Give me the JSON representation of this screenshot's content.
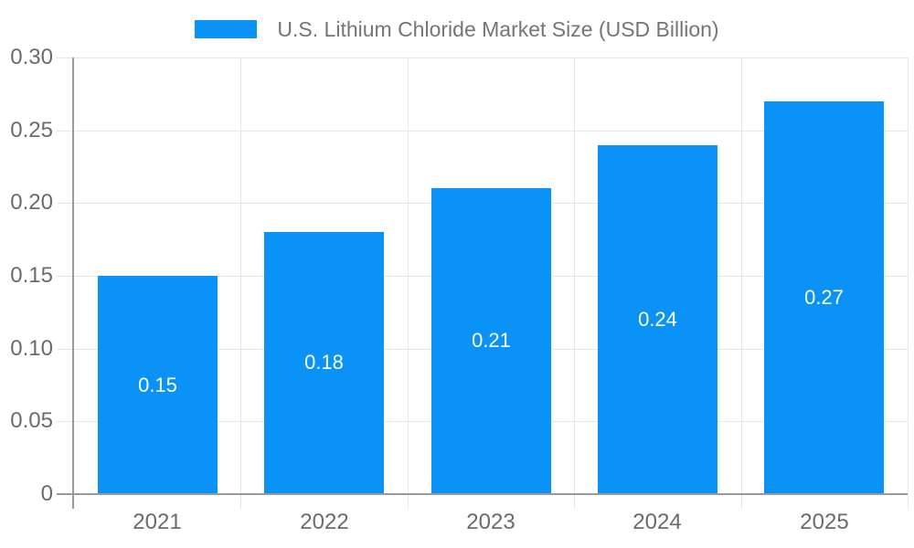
{
  "legend": {
    "label": "U.S. Lithium Chloride Market Size (USD Billion)"
  },
  "chart_data": {
    "type": "bar",
    "title": "U.S. Lithium Chloride Market Size (USD Billion)",
    "categories": [
      "2021",
      "2022",
      "2023",
      "2024",
      "2025"
    ],
    "values": [
      0.15,
      0.18,
      0.21,
      0.24,
      0.27
    ],
    "bar_labels": [
      "0.15",
      "0.18",
      "0.21",
      "0.24",
      "0.27"
    ],
    "xlabel": "",
    "ylabel": "",
    "ylim": [
      0,
      0.3
    ],
    "ytick_values": [
      0.3,
      0.25,
      0.2,
      0.15,
      0.1,
      0.05,
      0
    ],
    "ytick_labels": [
      "0.30",
      "0.25",
      "0.20",
      "0.15",
      "0.10",
      "0.05",
      "0"
    ],
    "grid": true,
    "legend_position": "top",
    "colors": {
      "bar": "#0a92f7",
      "grid": "#e6e6e6",
      "axis": "#9a9a9a",
      "tick_text": "#6b6b6b",
      "legend_text": "#757575",
      "bar_label_text": "#ffffff",
      "background": "#ffffff"
    }
  }
}
